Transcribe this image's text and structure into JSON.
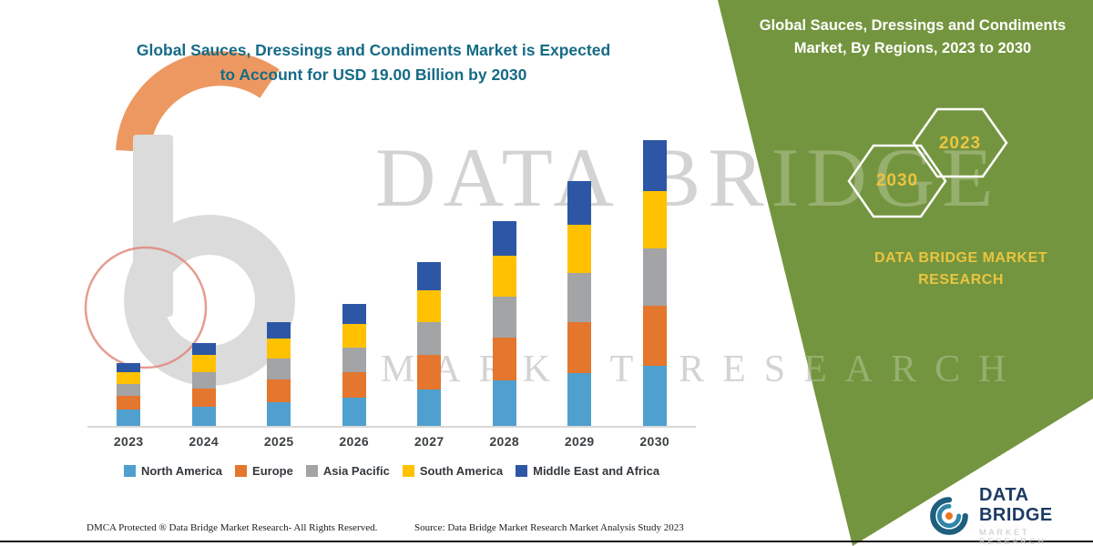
{
  "colors": {
    "panel_green": "#74953F",
    "title_teal": "#156B86",
    "accent_yellow": "#EAC53F",
    "axis_gray": "#D8D8D8"
  },
  "panel": {
    "title": "Global Sauces, Dressings and Condiments Market, By Regions, 2023 to 2030",
    "hexagon_left": "2030",
    "hexagon_right": "2023",
    "brand_caption": "DATA BRIDGE MARKET RESEARCH"
  },
  "watermark": {
    "line1": "DATA BRIDGE",
    "line2": "MARKET RESEARCH"
  },
  "chart_data": {
    "type": "bar",
    "stacked": true,
    "title": "Global Sauces, Dressings and Condiments Market is Expected to Account for USD 19.00 Billion by 2030",
    "title_lines": [
      "Global Sauces, Dressings and Condiments Market is Expected",
      "to Account for USD 19.00 Billion by 2030"
    ],
    "unit": "USD Billion",
    "xlabel": "",
    "ylabel": "",
    "grid": false,
    "legend_position": "bottom",
    "ylim": [
      0,
      19
    ],
    "categories": [
      "2023",
      "2024",
      "2025",
      "2026",
      "2027",
      "2028",
      "2029",
      "2030"
    ],
    "series": [
      {
        "name": "North America",
        "color": "#4FA0CE",
        "values": [
          1.1,
          1.3,
          1.6,
          1.9,
          2.4,
          3.0,
          3.5,
          4.0
        ]
      },
      {
        "name": "Europe",
        "color": "#E4762D",
        "values": [
          0.9,
          1.2,
          1.5,
          1.7,
          2.3,
          2.9,
          3.4,
          4.0
        ]
      },
      {
        "name": "Asia Pacific",
        "color": "#A2A4A6",
        "values": [
          0.8,
          1.1,
          1.4,
          1.6,
          2.2,
          2.7,
          3.3,
          3.8
        ]
      },
      {
        "name": "South America",
        "color": "#FFC100",
        "values": [
          0.8,
          1.1,
          1.3,
          1.6,
          2.1,
          2.7,
          3.2,
          3.8
        ]
      },
      {
        "name": "Middle East and Africa",
        "color": "#2D57A5",
        "values": [
          0.6,
          0.8,
          1.1,
          1.3,
          1.9,
          2.3,
          2.9,
          3.4
        ]
      }
    ],
    "totals": [
      4.2,
      5.5,
      6.9,
      8.1,
      10.9,
      13.6,
      16.3,
      19.0
    ]
  },
  "footer": {
    "dmca": "DMCA Protected ® Data Bridge Market Research-  All Rights Reserved.",
    "source": "Source: Data Bridge Market Research  Market Analysis Study 2023"
  },
  "logo": {
    "name": "DATA BRIDGE",
    "tagline": "MARKET RESEARCH"
  }
}
